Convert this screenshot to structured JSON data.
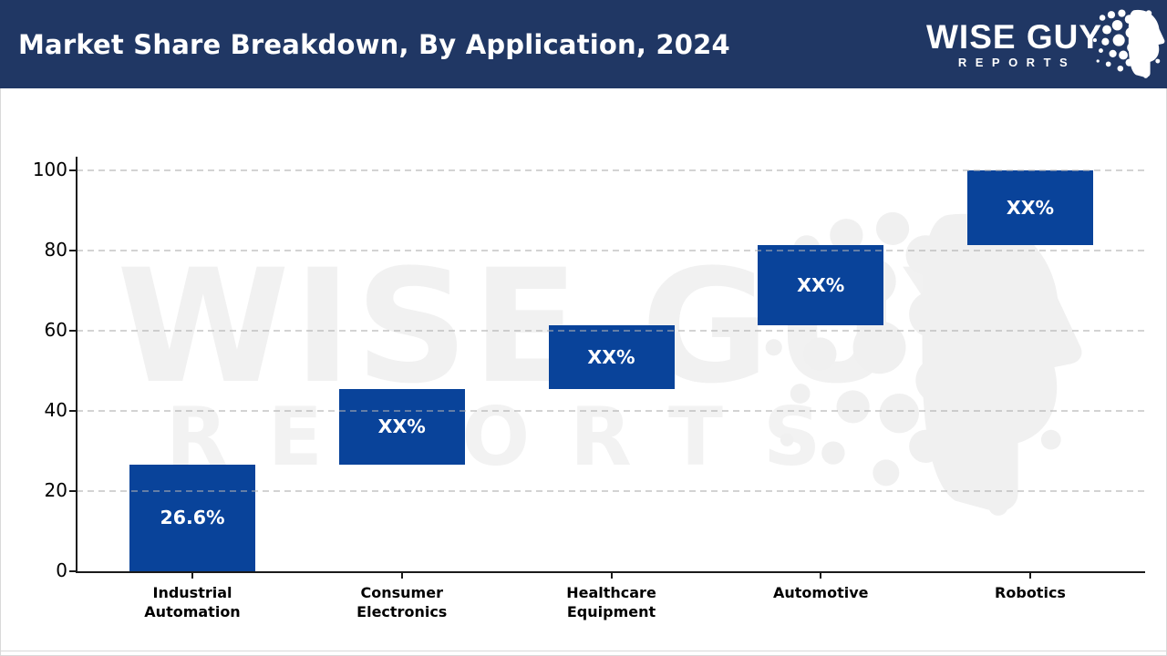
{
  "header": {
    "title": "Market Share Breakdown, By Application, 2024",
    "bg_color": "#203764",
    "logo": {
      "line1": "WISE GUY",
      "line2": "REPORTS"
    }
  },
  "watermark": {
    "line1": "WISE GUY",
    "line2": "REPORTS"
  },
  "chart_data": {
    "type": "bar",
    "subtype": "waterfall",
    "title": "Market Share Breakdown, By Application, 2024",
    "categories": [
      "Industrial Automation",
      "Consumer Electronics",
      "Healthcare Equipment",
      "Automotive",
      "Robotics"
    ],
    "category_label_lines": [
      [
        "Industrial",
        "Automation"
      ],
      [
        "Consumer",
        "Electronics"
      ],
      [
        "Healthcare",
        "Equipment"
      ],
      [
        "Automotive"
      ],
      [
        "Robotics"
      ]
    ],
    "segments": [
      {
        "category": "Industrial Automation",
        "start": 0,
        "end": 26.6,
        "label": "26.6%"
      },
      {
        "category": "Consumer Electronics",
        "start": 26.6,
        "end": 45.5,
        "label": "XX%"
      },
      {
        "category": "Healthcare Equipment",
        "start": 45.5,
        "end": 61.2,
        "label": "XX%"
      },
      {
        "category": "Automotive",
        "start": 61.2,
        "end": 81.3,
        "label": "XX%"
      },
      {
        "category": "Robotics",
        "start": 81.3,
        "end": 100,
        "label": "XX%"
      }
    ],
    "y_ticks": [
      0,
      20,
      40,
      60,
      80,
      100
    ],
    "ylim": [
      0,
      105
    ],
    "xlabel": "",
    "ylabel": "",
    "grid": true,
    "grid_style": "dashed",
    "legend": false,
    "bar_color": "#09439a",
    "bar_value_text_color": "#ffffff"
  }
}
